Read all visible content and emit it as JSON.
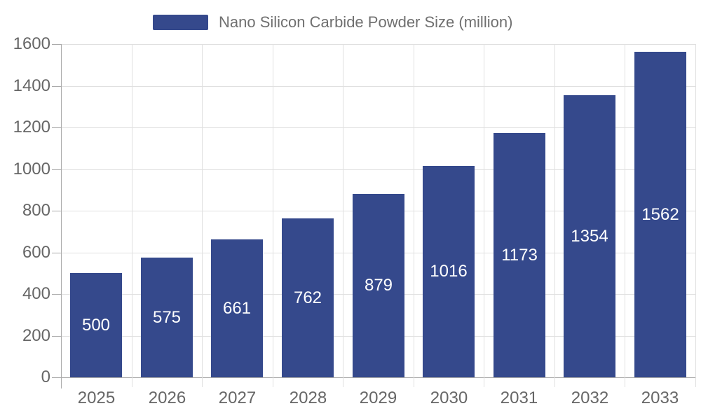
{
  "legend": {
    "label": "Nano Silicon Carbide Powder Size (million)"
  },
  "chart_data": {
    "type": "bar",
    "title": "Nano Silicon Carbide Powder Size (million)",
    "categories": [
      "2025",
      "2026",
      "2027",
      "2028",
      "2029",
      "2030",
      "2031",
      "2032",
      "2033"
    ],
    "series": [
      {
        "name": "Nano Silicon Carbide Powder Size (million)",
        "values": [
          500,
          575,
          661,
          762,
          879,
          1016,
          1173,
          1354,
          1562
        ]
      }
    ],
    "value_labels": [
      "500",
      "575",
      "661",
      "762",
      "879",
      "1016",
      "1173",
      "1354",
      "1562"
    ],
    "xlabel": "",
    "ylabel": "",
    "ylim": [
      0,
      1600
    ],
    "ytick_step": 200,
    "yticks": [
      "0",
      "200",
      "400",
      "600",
      "800",
      "1000",
      "1200",
      "1400",
      "1600"
    ],
    "grid": true,
    "legend_position": "top-center",
    "value_label_position": "inside-center",
    "colors": {
      "bar": "#35498C",
      "value_label": "#FFFFFF",
      "grid": "#E0E0E0",
      "axis": "#AAAAAA",
      "tick_label": "#666666",
      "legend_text": "#707070",
      "background": "#FFFFFF"
    }
  }
}
